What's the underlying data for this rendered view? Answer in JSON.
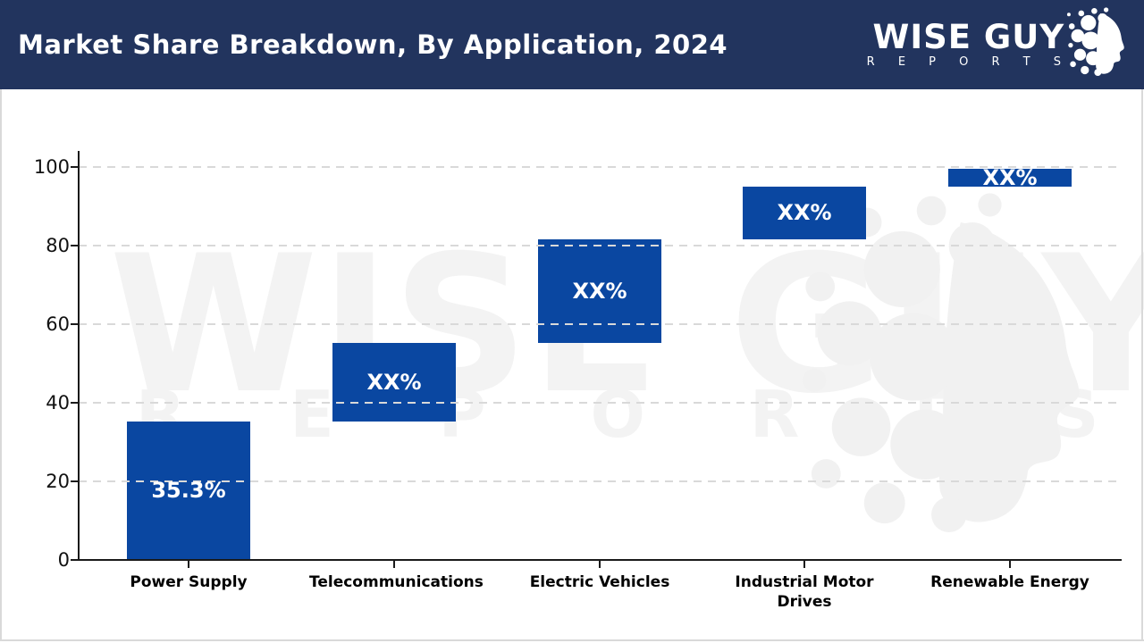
{
  "header": {
    "title": "Market Share Breakdown, By Application, 2024",
    "logo": {
      "name": "WISE GUY",
      "sub": "R E P O R T S",
      "icon": "dotted-head-profile-icon"
    }
  },
  "watermark": {
    "line1": "WISE GUY",
    "line2": "R E P O R T S"
  },
  "chart_data": {
    "type": "bar",
    "subtype": "waterfall",
    "title": "Market Share Breakdown, By Application, 2024",
    "categories": [
      "Power Supply",
      "Telecommunications",
      "Electric Vehicles",
      "Industrial Motor Drives",
      "Renewable Energy"
    ],
    "segments": [
      {
        "category": "Power Supply",
        "start": 0,
        "end": 35.3,
        "label": "35.3%"
      },
      {
        "category": "Telecommunications",
        "start": 35.3,
        "end": 55.2,
        "label": "XX%"
      },
      {
        "category": "Electric Vehicles",
        "start": 55.2,
        "end": 81.7,
        "label": "XX%"
      },
      {
        "category": "Industrial Motor Drives",
        "start": 81.7,
        "end": 94.9,
        "label": "XX%"
      },
      {
        "category": "Renewable Energy",
        "start": 94.9,
        "end": 99.6,
        "label": "XX%"
      }
    ],
    "xlabel": "",
    "ylabel": "",
    "ylim": [
      0,
      104
    ],
    "y_ticks": [
      0,
      20,
      40,
      60,
      80,
      100
    ],
    "grid": "horizontal-dashed",
    "legend": "none",
    "bar_color": "#0a47a1",
    "bar_label_color": "#ffffff"
  },
  "colors": {
    "header_bg": "#22345e",
    "bar": "#0a47a1",
    "grid": "#d9d9d9",
    "axis": "#1a1a1a",
    "watermark": "#f3f3f3",
    "frame": "#d9d9d9"
  }
}
